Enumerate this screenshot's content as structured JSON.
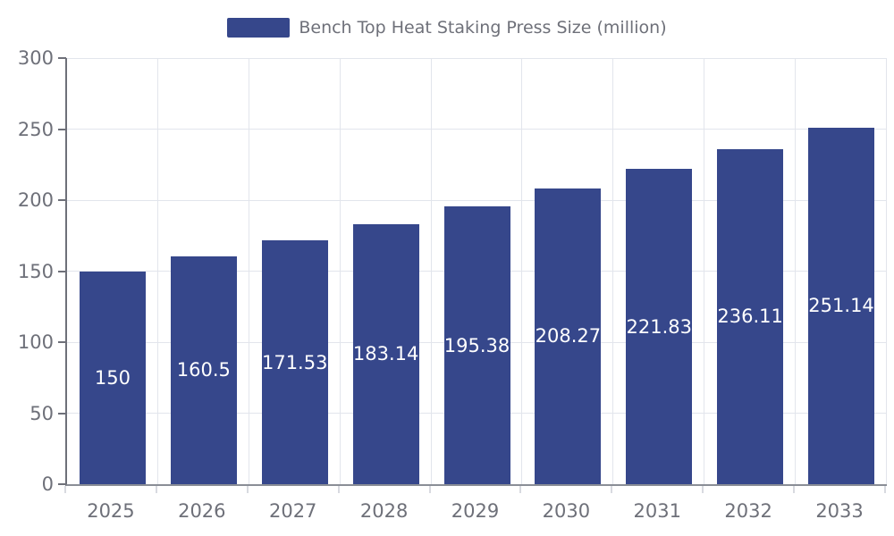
{
  "chart_data": {
    "type": "bar",
    "title": "Bench Top Heat Staking Press Size (million)",
    "categories": [
      "2025",
      "2026",
      "2027",
      "2028",
      "2029",
      "2030",
      "2031",
      "2032",
      "2033"
    ],
    "series": [
      {
        "name": "Bench Top Heat Staking Press Size (million)",
        "values": [
          150,
          160.5,
          171.53,
          183.14,
          195.38,
          208.27,
          221.83,
          236.11,
          251.14
        ]
      }
    ],
    "value_labels": [
      "150",
      "160.5",
      "171.53",
      "183.14",
      "195.38",
      "208.27",
      "221.83",
      "236.11",
      "251.14"
    ],
    "xlabel": "",
    "ylabel": "",
    "ylim": [
      0,
      300
    ],
    "ytick_step": 50,
    "yticks": [
      0,
      50,
      100,
      150,
      200,
      250,
      300
    ],
    "grid": true,
    "legend_position": "top-center",
    "colors": {
      "bar": "#36478B",
      "axis_label": "#6E7079",
      "y_axis_line": "#6E7079",
      "x_axis_line": "#8A8E96",
      "gridline": "#E2E5EC",
      "x_tick": "#D8DAE0",
      "value_label": "#FFFFFF",
      "legend_text": "#6E7079",
      "background": "#FFFFFF"
    }
  }
}
